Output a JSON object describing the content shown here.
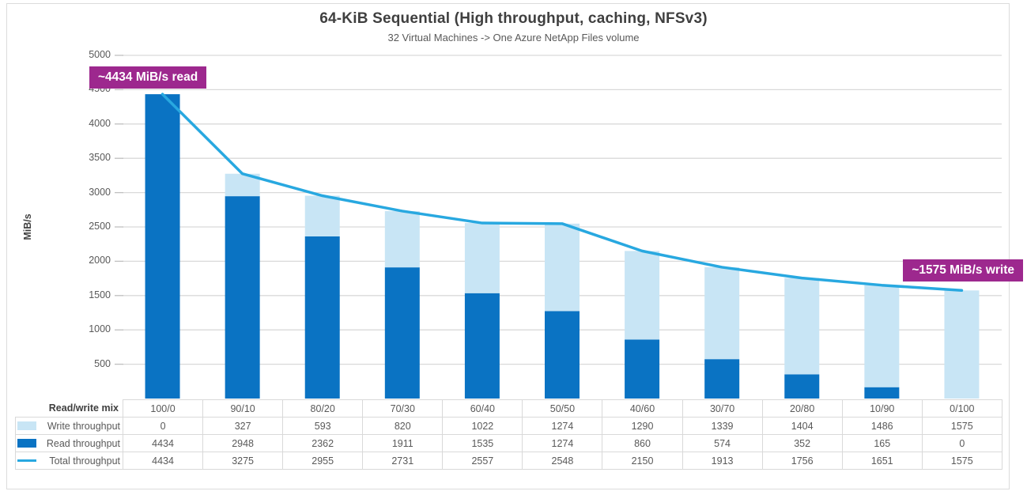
{
  "chart_data": {
    "type": "bar",
    "subtype": "stacked-bar-with-line",
    "title": "64-KiB Sequential (High throughput, caching, NFSv3)",
    "subtitle": "32 Virtual Machines -> One Azure NetApp Files volume",
    "xlabel": "Read/write mix",
    "ylabel": "MiB/s",
    "ylim": [
      0,
      5000
    ],
    "ytick_step": 500,
    "yticks": [
      500,
      1000,
      1500,
      2000,
      2500,
      3000,
      3500,
      4000,
      4500,
      5000
    ],
    "grid": true,
    "legend_position": "data-table-left",
    "categories": [
      "100/0",
      "90/10",
      "80/20",
      "70/30",
      "60/40",
      "50/50",
      "40/60",
      "30/70",
      "20/80",
      "10/90",
      "0/100"
    ],
    "series": [
      {
        "name": "Write throughput",
        "type": "bar",
        "stack_position": "top",
        "color": "#C8E5F5",
        "values": [
          0,
          327,
          593,
          820,
          1022,
          1274,
          1290,
          1339,
          1404,
          1486,
          1575
        ]
      },
      {
        "name": "Read throughput",
        "type": "bar",
        "stack_position": "bottom",
        "color": "#0A73C3",
        "values": [
          4434,
          2948,
          2362,
          1911,
          1535,
          1274,
          860,
          574,
          352,
          165,
          0
        ]
      },
      {
        "name": "Total throughput",
        "type": "line",
        "color": "#28A8E0",
        "values": [
          4434,
          3275,
          2955,
          2731,
          2557,
          2548,
          2150,
          1913,
          1756,
          1651,
          1575
        ]
      }
    ],
    "annotations": [
      {
        "text": "~4434 MiB/s read",
        "color": "#9D288E",
        "position": "top-left"
      },
      {
        "text": "~1575 MiB/s write",
        "color": "#9D288E",
        "position": "middle-right"
      }
    ],
    "colors": {
      "gridline": "#D9D9D9",
      "tick": "#BFBFBF",
      "title_text": "#3F3F3F",
      "body_text": "#595959"
    }
  }
}
